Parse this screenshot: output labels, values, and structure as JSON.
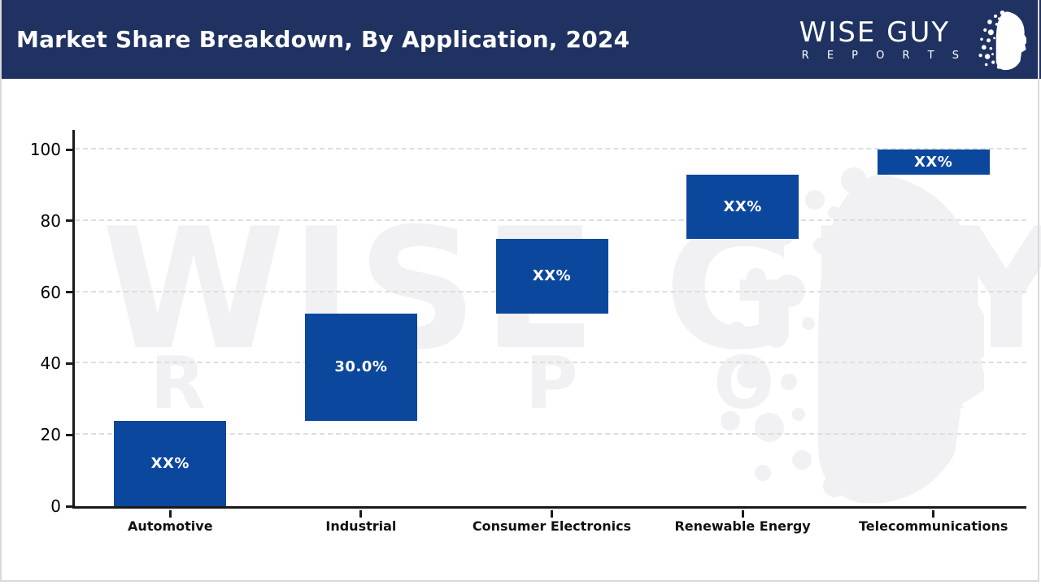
{
  "header": {
    "title": "Market Share Breakdown, By Application, 2024",
    "logo": {
      "line1": "WISE GUY",
      "line2": "R E P O R T S"
    }
  },
  "watermark": {
    "line1": "WISE GUY",
    "line2": "R E P O R T S"
  },
  "colors": {
    "header_bg": "#1f3261",
    "bar": "#0b479d",
    "bar_label_text": "#ffffff",
    "axis": "#1a1a1a",
    "gridline": "#dedede",
    "watermark": "#f1f1f4",
    "page_bg": "#ffffff"
  },
  "chart_data": {
    "type": "bar",
    "subtype": "floating-waterfall",
    "title": "Market Share Breakdown, By Application, 2024",
    "categories": [
      "Automotive",
      "Industrial",
      "Consumer Electronics",
      "Renewable Energy",
      "Telecommunications"
    ],
    "segments": [
      {
        "category": "Automotive",
        "start": 0,
        "end": 24,
        "value": 24,
        "label": "XX%"
      },
      {
        "category": "Industrial",
        "start": 24,
        "end": 54,
        "value": 30,
        "label": "30.0%"
      },
      {
        "category": "Consumer Electronics",
        "start": 54,
        "end": 75,
        "value": 21,
        "label": "XX%"
      },
      {
        "category": "Renewable Energy",
        "start": 75,
        "end": 93,
        "value": 18,
        "label": "XX%"
      },
      {
        "category": "Telecommunications",
        "start": 93,
        "end": 100,
        "value": 7,
        "label": "XX%"
      }
    ],
    "yticks": [
      0,
      20,
      40,
      60,
      80,
      100
    ],
    "ylim": [
      0,
      106
    ],
    "xlabel": "",
    "ylabel": "",
    "grid": "horizontal-dashed",
    "legend": "none"
  }
}
